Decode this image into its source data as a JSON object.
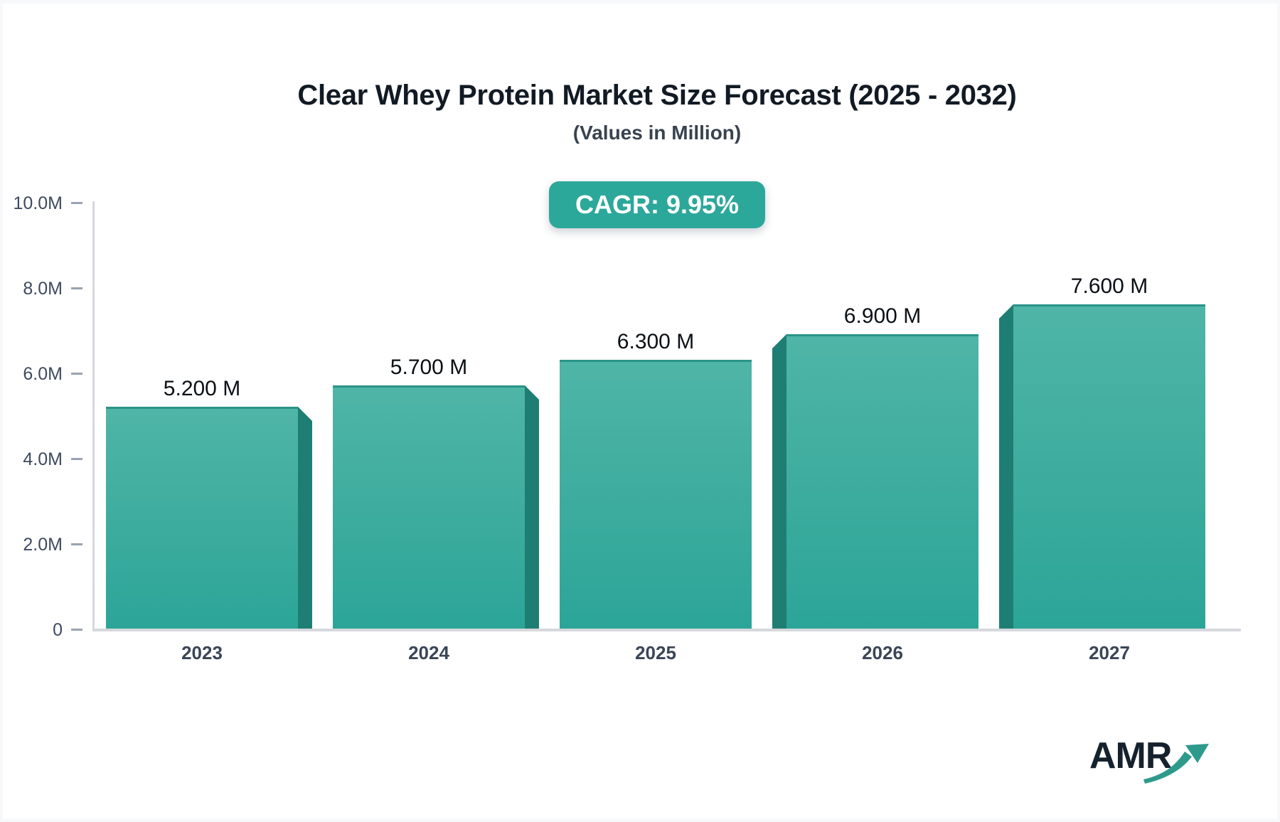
{
  "chart_data": {
    "type": "bar",
    "title": "Clear Whey Protein Market Size Forecast (2025 - 2032)",
    "subtitle": "(Values in Million)",
    "cagr_label": "CAGR: 9.95%",
    "cagr_value": "9.95%",
    "unit": "Million",
    "categories": [
      "2023",
      "2024",
      "2025",
      "2026",
      "2027"
    ],
    "values": [
      5.2,
      5.7,
      6.3,
      6.9,
      7.6
    ],
    "value_labels": [
      "5.200 M",
      "5.700 M",
      "6.300 M",
      "6.900 M",
      "7.600 M"
    ],
    "ylim": [
      0,
      10
    ],
    "y_ticks": [
      {
        "value": 10,
        "label": "10.0M"
      },
      {
        "value": 8,
        "label": "8.0M"
      },
      {
        "value": 6,
        "label": "6.0M"
      },
      {
        "value": 4,
        "label": "4.0M"
      },
      {
        "value": 2,
        "label": "2.0M"
      },
      {
        "value": 0,
        "label": "0"
      }
    ],
    "grid": "off",
    "legend": "none",
    "bar_style": "3d-beveled"
  },
  "logo": {
    "text": "AMR",
    "icon": "growth-arrow-icon"
  },
  "colors": {
    "bar_top": "#4FB5A7",
    "bar_bottom": "#2BA598",
    "bar_side": "#1F7E73",
    "bar_edge": "#2A9488",
    "badge_bg": "#2CA89B",
    "badge_text": "#FFFFFF",
    "axis_line": "#D6D8DD",
    "tick_mark": "#9AA3B0",
    "tick_label": "#3E4A60",
    "x_label": "#3A4557",
    "value_label": "#0B1015",
    "title": "#121A24",
    "subtitle": "#39434F",
    "logo_text": "#15222D",
    "logo_arrow": "#2E9A8C"
  }
}
